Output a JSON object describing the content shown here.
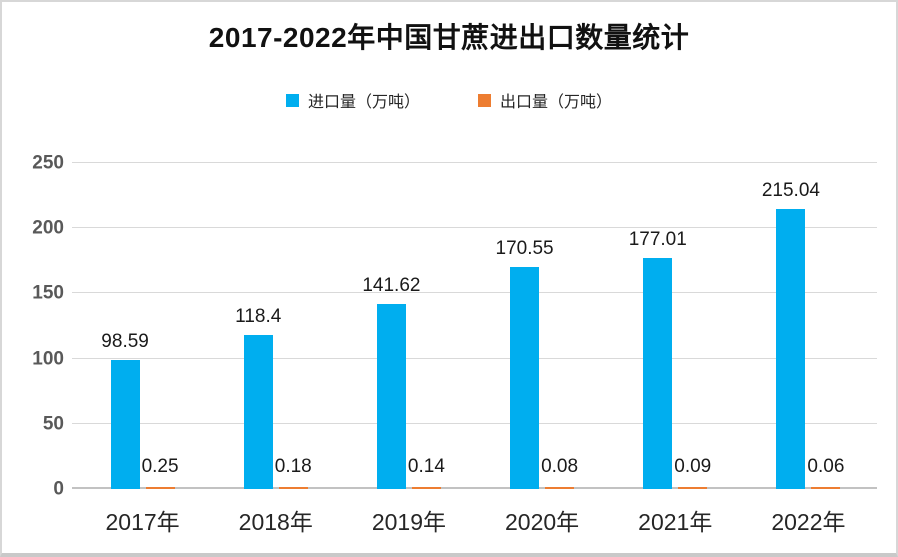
{
  "title": "2017-2022年中国甘蔗进出口数量统计",
  "chart_data": {
    "type": "bar",
    "title": "2017-2022年中国甘蔗进出口数量统计",
    "categories": [
      "2017年",
      "2018年",
      "2019年",
      "2020年",
      "2021年",
      "2022年"
    ],
    "series": [
      {
        "name": "进口量（万吨）",
        "color": "#00aeef",
        "values": [
          98.59,
          118.4,
          141.62,
          170.55,
          177.01,
          215.04
        ]
      },
      {
        "name": "出口量（万吨）",
        "color": "#ed7d31",
        "values": [
          0.25,
          0.18,
          0.14,
          0.08,
          0.09,
          0.06
        ]
      }
    ],
    "ylim": [
      0,
      250
    ],
    "yticks": [
      0,
      50,
      100,
      150,
      200,
      250
    ],
    "grid": true,
    "legend_position": "top",
    "data_labels": true
  },
  "colors": {
    "import_bar": "#00aeef",
    "export_bar": "#ed7d31",
    "gridline": "#d9d9d9",
    "axis_line": "#c2c2c2",
    "ytick_text": "#595959",
    "title_text": "#111111"
  }
}
